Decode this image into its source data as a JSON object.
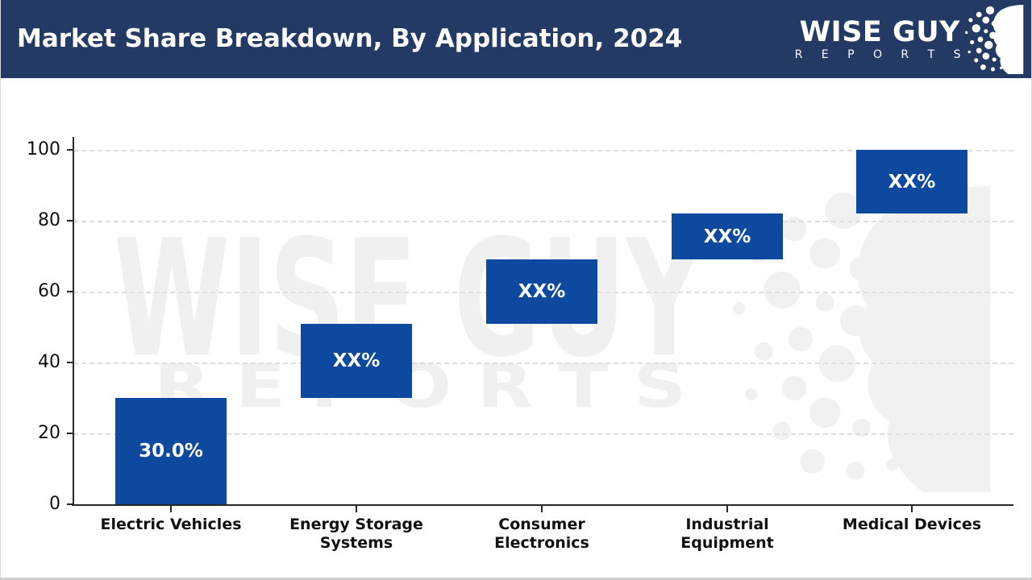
{
  "header": {
    "title": "Market Share Breakdown, By Application, 2024",
    "bg_color": "#233a64",
    "logo": {
      "line1": "WISE GUY",
      "line2": "R E P O R T S"
    }
  },
  "watermark": {
    "line1": "WISE GUY",
    "line2": "R E P O R T S"
  },
  "chart_data": {
    "type": "bar",
    "subtype": "waterfall",
    "title": "Market Share Breakdown, By Application, 2024",
    "categories": [
      "Electric Vehicles",
      "Energy Storage Systems",
      "Consumer Electronics",
      "Industrial Equipment",
      "Medical Devices"
    ],
    "category_lines": [
      [
        "Electric Vehicles"
      ],
      [
        "Energy Storage",
        "Systems"
      ],
      [
        "Consumer",
        "Electronics"
      ],
      [
        "Industrial",
        "Equipment"
      ],
      [
        "Medical Devices"
      ]
    ],
    "values": [
      30,
      21,
      18,
      13,
      18
    ],
    "starts": [
      0,
      30,
      51,
      69,
      82
    ],
    "ends": [
      30,
      51,
      69,
      82,
      100
    ],
    "bar_labels": [
      "30.0%",
      "XX%",
      "XX%",
      "XX%",
      "XX%"
    ],
    "yticks": [
      0,
      20,
      40,
      60,
      80,
      100
    ],
    "ylim": [
      0,
      100
    ],
    "xlabel": "",
    "ylabel": "",
    "bar_color": "#0d4a9f",
    "grid": "horizontal-dashed",
    "legend": null
  }
}
